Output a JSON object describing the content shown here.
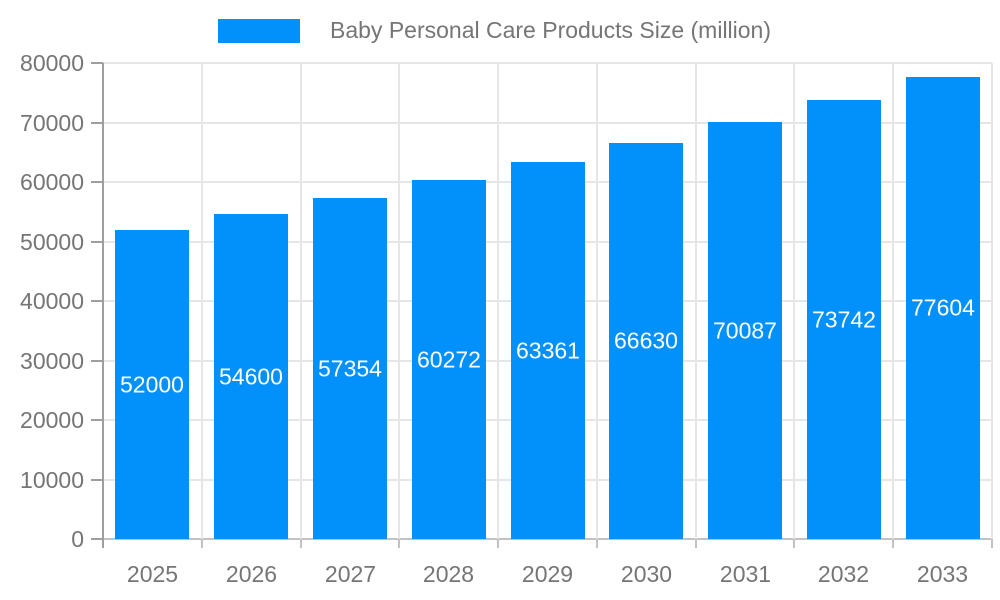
{
  "legend": {
    "label": "Baby Personal Care Products Size (million)",
    "swatch_color": "#0291fb"
  },
  "chart_data": {
    "type": "bar",
    "title": "Baby Personal Care Products Size (million)",
    "categories": [
      "2025",
      "2026",
      "2027",
      "2028",
      "2029",
      "2030",
      "2031",
      "2032",
      "2033"
    ],
    "values": [
      52000,
      54600,
      57354,
      60272,
      63361,
      66630,
      70087,
      73742,
      77604
    ],
    "series": [
      {
        "name": "Baby Personal Care Products Size (million)",
        "values": [
          52000,
          54600,
          57354,
          60272,
          63361,
          66630,
          70087,
          73742,
          77604
        ]
      }
    ],
    "xlabel": "",
    "ylabel": "",
    "ylim": [
      0,
      80000
    ],
    "ytick_step": 10000,
    "yticks": [
      0,
      10000,
      20000,
      30000,
      40000,
      50000,
      60000,
      70000,
      80000
    ],
    "grid": true,
    "legend_position": "top-center",
    "bar_labels_inside": true,
    "colors": {
      "bar": "#0291fb",
      "bar_label": "#ffffff",
      "axis_text": "#757575",
      "gridline": "#e6e6e6",
      "axis_line": "#9e9e9e",
      "baseline": "#c2c2c2"
    }
  }
}
